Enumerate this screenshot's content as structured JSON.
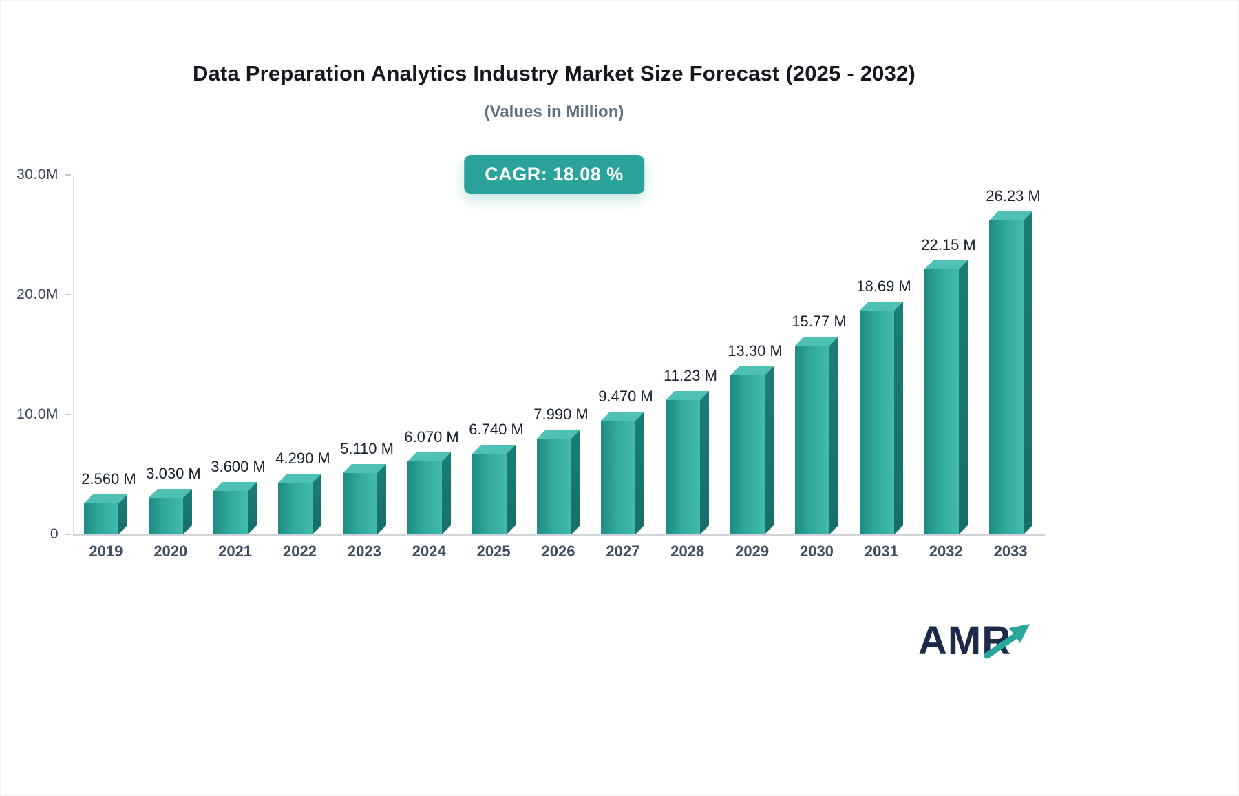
{
  "header": {
    "title": "Data Preparation Analytics Industry Market Size Forecast (2025 - 2032)",
    "subtitle": "(Values in Million)"
  },
  "badge": {
    "label": "CAGR: 18.08 %"
  },
  "logo": {
    "text": "AMR",
    "arrow_color": "#2aa79b",
    "text_color": "#1c2a4a"
  },
  "chart_data": {
    "type": "bar",
    "title": "Data Preparation Analytics Industry Market Size Forecast (2025 - 2032)",
    "subtitle": "(Values in Million)",
    "categories": [
      "2019",
      "2020",
      "2021",
      "2022",
      "2023",
      "2024",
      "2025",
      "2026",
      "2027",
      "2028",
      "2029",
      "2030",
      "2031",
      "2032",
      "2033"
    ],
    "values": [
      2.56,
      3.03,
      3.6,
      4.29,
      5.11,
      6.07,
      6.74,
      7.99,
      9.47,
      11.23,
      13.3,
      15.77,
      18.69,
      22.15,
      26.23
    ],
    "value_labels": [
      "2.560 M",
      "3.030 M",
      "3.600 M",
      "4.290 M",
      "5.110 M",
      "6.070 M",
      "6.740 M",
      "7.990 M",
      "9.470 M",
      "11.23 M",
      "13.30 M",
      "15.77 M",
      "18.69 M",
      "22.15 M",
      "26.23 M"
    ],
    "xlabel": "",
    "ylabel": "",
    "ylim": [
      0,
      30
    ],
    "y_ticks": [
      {
        "value": 0,
        "label": "0"
      },
      {
        "value": 10,
        "label": "10.0M"
      },
      {
        "value": 20,
        "label": "20.0M"
      },
      {
        "value": 30,
        "label": "30.0M"
      }
    ],
    "cagr": "18.08 %",
    "grid": false,
    "legend_position": "none",
    "bar_front_color": "#2fa99d",
    "bar_side_color": "#1a7a72",
    "bar_top_color": "#4fc0b4"
  }
}
